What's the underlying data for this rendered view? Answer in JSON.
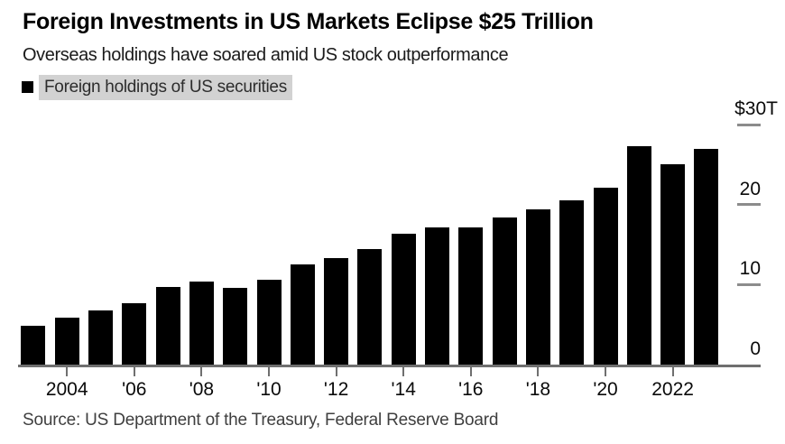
{
  "header": {
    "title": "Foreign Investments in US Markets Eclipse $25 Trillion",
    "subtitle": "Overseas holdings have soared amid US stock outperformance"
  },
  "legend": {
    "label": "Foreign holdings of US securities",
    "swatch_color": "#000000",
    "highlight_color": "#d2d2d2"
  },
  "source": "Source: US Department of the Treasury, Federal Reserve Board",
  "colors": {
    "background": "#ffffff",
    "bar": "#000000",
    "axis": "#6f6f6f",
    "y_tick": "#8c8c8c",
    "tick_label": "#0a0a0a",
    "source_text": "#3f3f3f"
  },
  "chart_data": {
    "type": "bar",
    "title": "Foreign Investments in US Markets Eclipse $25 Trillion",
    "subtitle": "Overseas holdings have soared amid US stock outperformance",
    "series_name": "Foreign holdings of US securities",
    "unit": "trillion USD",
    "x": [
      2003,
      2004,
      2005,
      2006,
      2007,
      2008,
      2009,
      2010,
      2011,
      2012,
      2013,
      2014,
      2015,
      2016,
      2017,
      2018,
      2019,
      2020,
      2021,
      2022,
      2023
    ],
    "values": [
      4.9,
      5.9,
      6.8,
      7.7,
      9.7,
      10.4,
      9.6,
      10.6,
      12.5,
      13.3,
      14.4,
      16.3,
      17.1,
      17.1,
      18.4,
      19.4,
      20.5,
      22.1,
      27.3,
      25.0,
      26.9
    ],
    "xlabel": "",
    "ylabel": "",
    "ylim": [
      0,
      30
    ],
    "yticks": [
      0,
      10,
      20,
      30
    ],
    "ytick_labels": [
      "0",
      "10",
      "20",
      "$30T"
    ],
    "xtick_years": [
      2004,
      2006,
      2008,
      2010,
      2012,
      2014,
      2016,
      2018,
      2020,
      2022
    ],
    "xtick_labels": [
      "2004",
      "'06",
      "'08",
      "'10",
      "'12",
      "'14",
      "'16",
      "'18",
      "'20",
      "2022"
    ],
    "bar_color": "#000000",
    "grid": false,
    "legend_position": "top-left",
    "y_axis_side": "right"
  }
}
